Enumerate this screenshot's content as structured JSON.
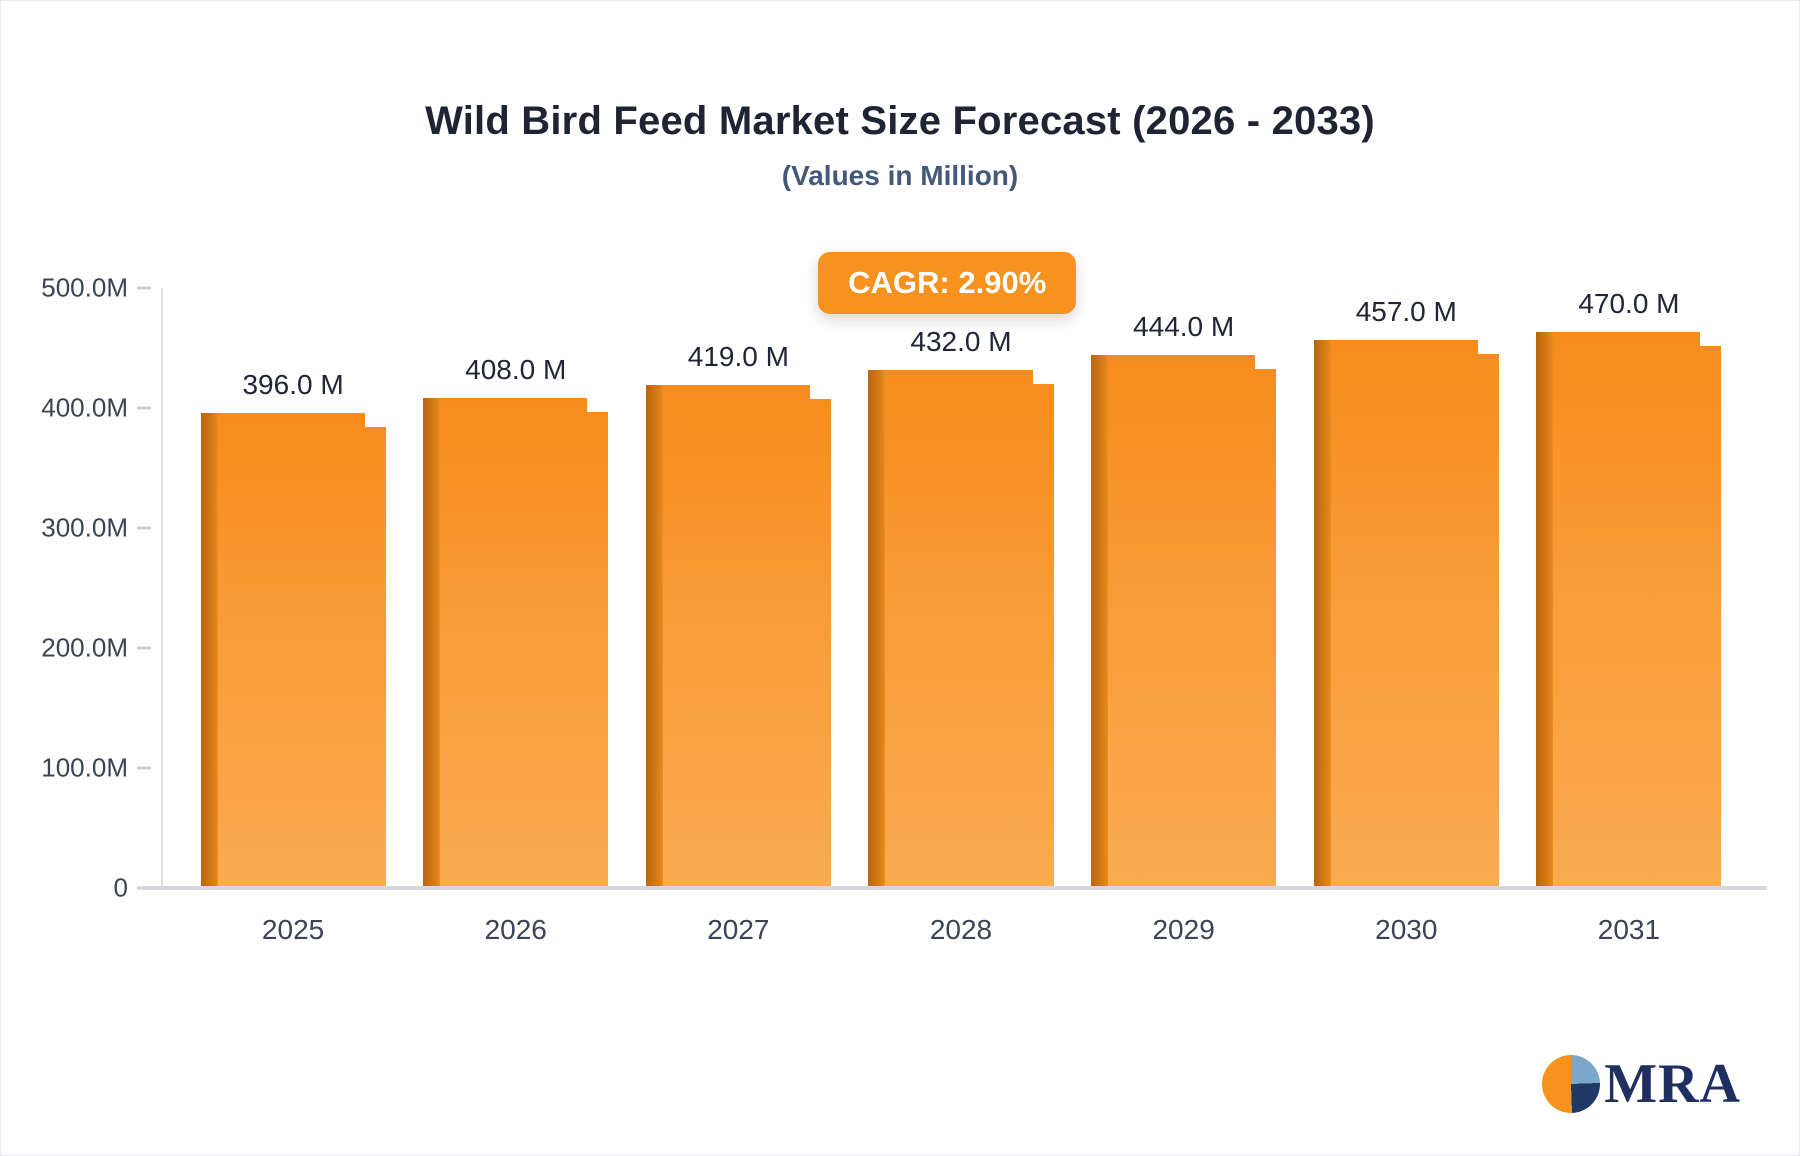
{
  "chart_data": {
    "type": "bar",
    "title": "Wild Bird Feed Market Size Forecast (2026 - 2033)",
    "subtitle": "(Values in Million)",
    "cagr_label": "CAGR: 2.90%",
    "categories": [
      "2025",
      "2026",
      "2027",
      "2028",
      "2029",
      "2030",
      "2031"
    ],
    "values": [
      396.0,
      408.0,
      419.0,
      432.0,
      444.0,
      457.0,
      470.0
    ],
    "value_labels": [
      "396.0 M",
      "408.0 M",
      "419.0 M",
      "432.0 M",
      "444.0 M",
      "457.0 M",
      "470.0 M"
    ],
    "y_ticks": [
      "500.0M",
      "400.0M",
      "300.0M",
      "200.0M",
      "100.0M",
      "0"
    ],
    "ylim": [
      0,
      500
    ],
    "xlabel": "",
    "ylabel": "",
    "grid": false,
    "legend_position": "none",
    "bar_color": "#F7941E",
    "bar_edge_color": "#B8650D",
    "badge_color": "#F6921E",
    "title_color": "#1E2433",
    "subtitle_color": "#44587A"
  },
  "logo": {
    "text": "MRA"
  }
}
